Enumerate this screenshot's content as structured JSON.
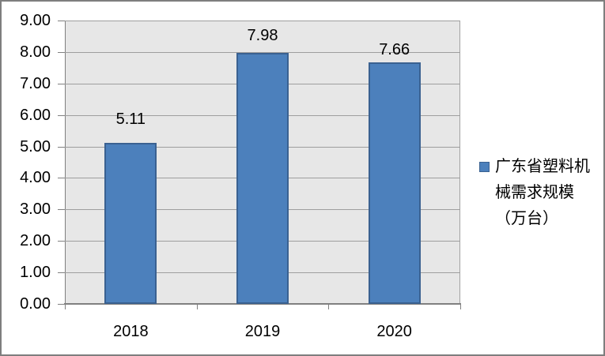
{
  "legend": {
    "label_full": "广东省塑料机械需求规模（万台）",
    "lines": [
      "广东省塑料机",
      "械需求规模",
      "（万台）"
    ],
    "marker": "blue-square"
  },
  "chart_data": {
    "type": "bar",
    "title": "",
    "xlabel": "",
    "ylabel": "",
    "categories": [
      "2018",
      "2019",
      "2020"
    ],
    "values": [
      5.11,
      7.98,
      7.66
    ],
    "data_labels": [
      "5.11",
      "7.98",
      "7.66"
    ],
    "series": [
      {
        "name": "广东省塑料机械需求规模（万台）",
        "values": [
          5.11,
          7.98,
          7.66
        ]
      }
    ],
    "ylim": [
      0,
      9
    ],
    "ytick_step": 1,
    "yticks": [
      "0.00",
      "1.00",
      "2.00",
      "3.00",
      "4.00",
      "5.00",
      "6.00",
      "7.00",
      "8.00",
      "9.00"
    ],
    "grid": true,
    "legend_position": "right",
    "colors": {
      "bar_fill": "#4c80bc",
      "bar_border": "#3a6191",
      "plot_background": "#e7e7e7",
      "gridline": "#9e9e9e",
      "axis": "#808080",
      "chart_border": "#7e7e7e",
      "text": "#000000"
    }
  }
}
